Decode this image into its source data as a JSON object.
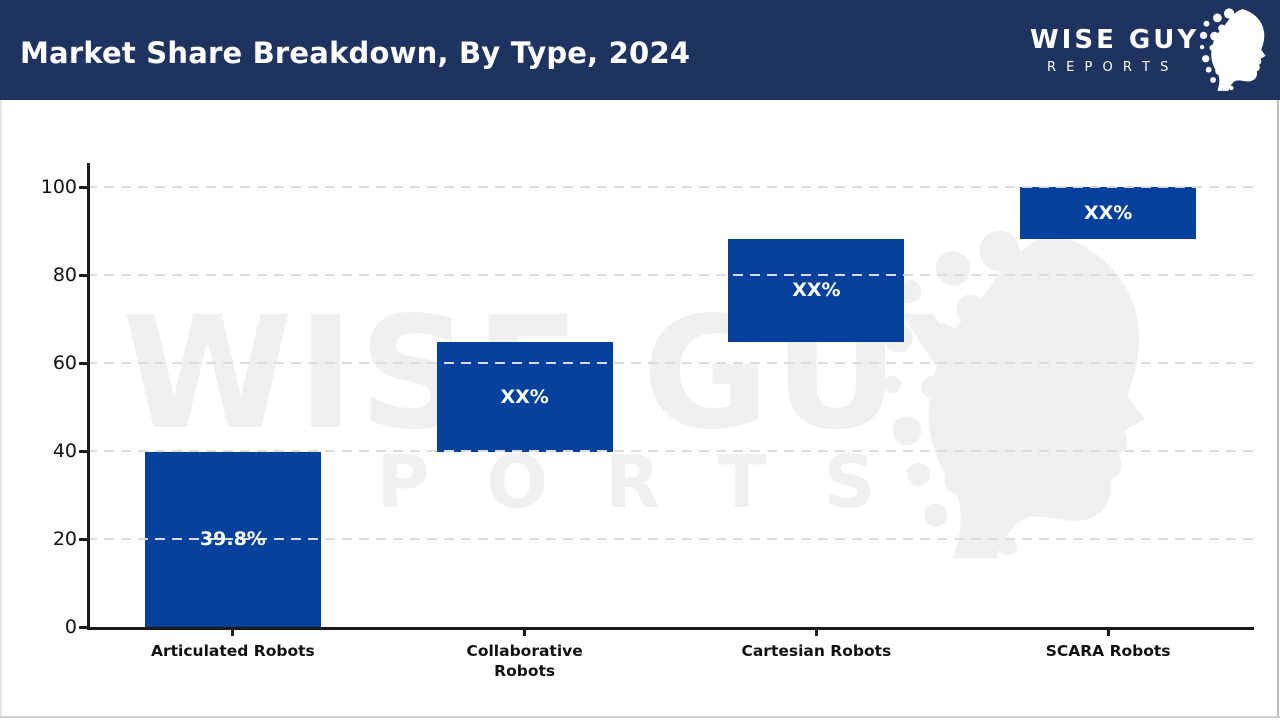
{
  "header": {
    "title": "Market Share Breakdown, By Type, 2024",
    "logo": {
      "name": "WISE GUY",
      "sub": "R E P O R T S"
    }
  },
  "watermark": {
    "line1": "WISE GUY",
    "line2": "R E P O R T S"
  },
  "chart_data": {
    "type": "bar",
    "subtype": "waterfall",
    "title": "Market Share Breakdown, By Type, 2024",
    "categories": [
      "Articulated Robots",
      "Collaborative Robots",
      "Cartesian Robots",
      "SCARA Robots"
    ],
    "categories_display": [
      [
        "Articulated Robots"
      ],
      [
        "Collaborative",
        "Robots"
      ],
      [
        "Cartesian Robots"
      ],
      [
        "SCARA Robots"
      ]
    ],
    "segments": [
      {
        "category": "Articulated Robots",
        "start": 0,
        "end": 39.8,
        "label": "39.8%"
      },
      {
        "category": "Collaborative Robots",
        "start": 39.8,
        "end": 64.8,
        "label": "XX%"
      },
      {
        "category": "Cartesian Robots",
        "start": 64.8,
        "end": 88.2,
        "label": "XX%"
      },
      {
        "category": "SCARA Robots",
        "start": 88.2,
        "end": 100,
        "label": "XX%"
      }
    ],
    "ylim": [
      0,
      100
    ],
    "yticks": [
      0,
      20,
      40,
      60,
      80,
      100
    ],
    "xlabel": "",
    "ylabel": "",
    "grid": "horizontal-dashed",
    "legend": "none",
    "bar_color": "#04419C",
    "bar_label_color": "#FFFFFF"
  },
  "colors": {
    "header_bg": "#1F3361",
    "title_text": "#FFFFFF",
    "bar": "#04419C",
    "axis": "#1A1A1A",
    "gridline": "#DCDCDC",
    "watermark": "#F0F0F3",
    "panel_border": "#C8C8C8"
  }
}
